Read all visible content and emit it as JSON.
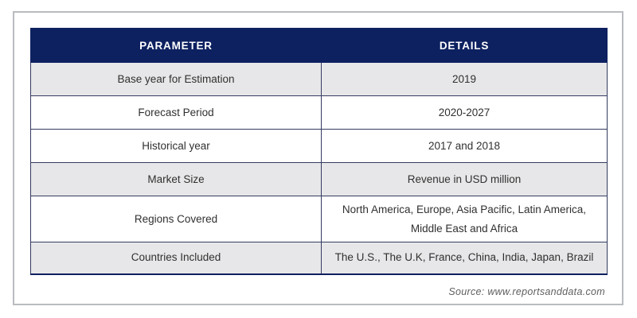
{
  "table": {
    "columns": [
      {
        "label": "PARAMETER"
      },
      {
        "label": "DETAILS"
      }
    ],
    "rows": [
      {
        "parameter": "Base year for Estimation",
        "details": "2019"
      },
      {
        "parameter": "Forecast Period",
        "details": "2020-2027"
      },
      {
        "parameter": "Historical year",
        "details": "2017 and 2018"
      },
      {
        "parameter": "Market Size",
        "details": "Revenue in USD million"
      },
      {
        "parameter": "Regions Covered",
        "details": "North America, Europe, Asia Pacific, Latin America, Middle East and Africa"
      },
      {
        "parameter": "Countries Included",
        "details": "The U.S., The  U.K, France, China, India, Japan, Brazil"
      }
    ]
  },
  "source": {
    "text": "Source: www.reportsanddata.com"
  },
  "colors": {
    "header_bg": "#0d2160",
    "header_text": "#ffffff",
    "shaded_row_bg": "#e7e7e9",
    "row_border": "#343c60",
    "card_border": "#b9bcc0",
    "body_text": "#303030",
    "source_text": "#5f5f5f"
  }
}
